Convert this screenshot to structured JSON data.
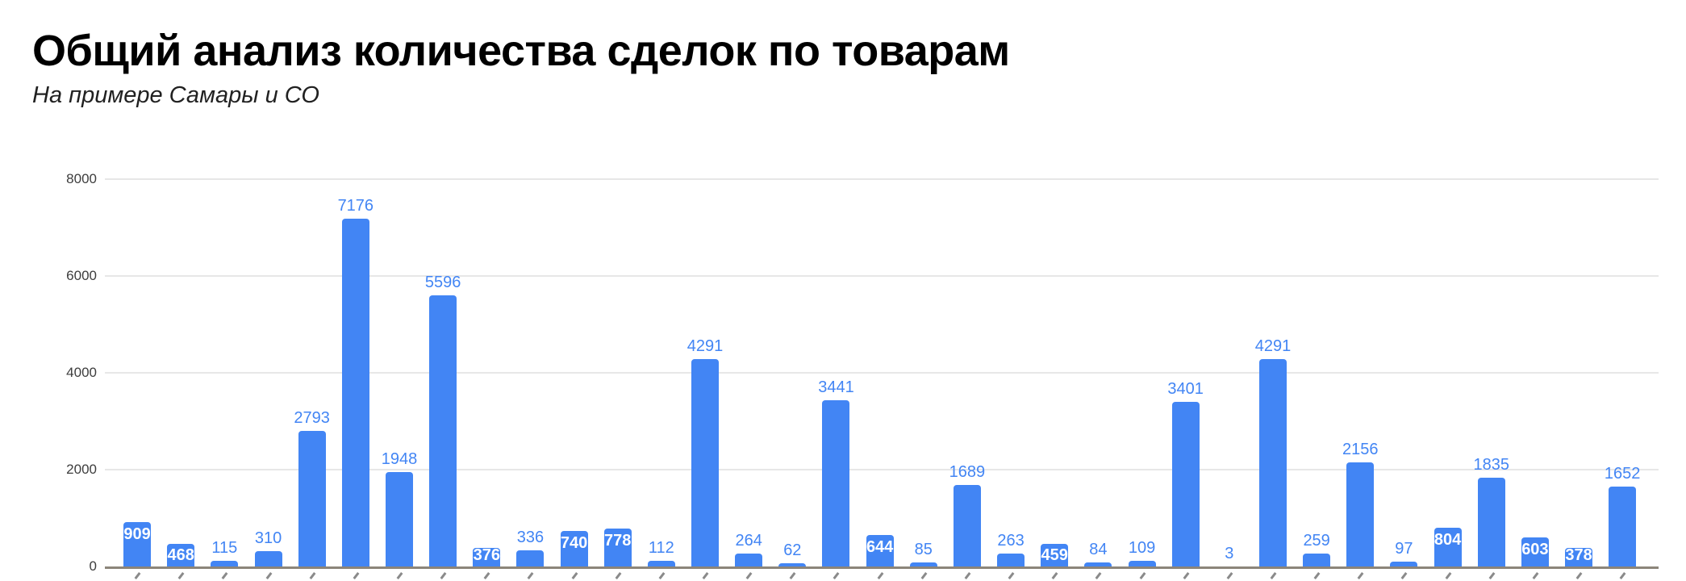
{
  "header": {
    "title": "Общий анализ количества сделок по товарам",
    "subtitle": "На примере Самары и СО"
  },
  "chart_data": {
    "type": "bar",
    "title": "Общий анализ количества сделок по товарам",
    "subtitle": "На примере Самары и СО",
    "values": [
      909,
      468,
      115,
      310,
      2793,
      7176,
      1948,
      5596,
      376,
      336,
      740,
      778,
      112,
      4291,
      264,
      62,
      3441,
      644,
      85,
      1689,
      263,
      459,
      84,
      109,
      3401,
      3,
      4291,
      259,
      2156,
      97,
      804,
      1835,
      603,
      378,
      1652
    ],
    "data_labels_visible": true,
    "label_placement": [
      "inside",
      "inside",
      "above",
      "above",
      "above",
      "above",
      "above",
      "above",
      "inside",
      "above",
      "inside",
      "inside",
      "above",
      "above",
      "above",
      "above",
      "above",
      "inside",
      "above",
      "above",
      "above",
      "inside",
      "above",
      "above",
      "above",
      "above",
      "above",
      "above",
      "above",
      "above",
      "inside",
      "above",
      "inside",
      "inside",
      "above"
    ],
    "ylim": [
      0,
      8000
    ],
    "yticks": [
      0,
      2000,
      4000,
      6000,
      8000
    ],
    "grid": true,
    "legend": "none",
    "x_axis_labels_visible": false,
    "colors": {
      "bar": "#4285f4",
      "data_label_above": "#4285f4",
      "data_label_inside": "#ffffff",
      "gridline": "#e7e7e7",
      "axis_line": "#8c857a",
      "tick_label": "#3d3d3d",
      "title": "#000000",
      "subtitle": "#212121"
    }
  }
}
